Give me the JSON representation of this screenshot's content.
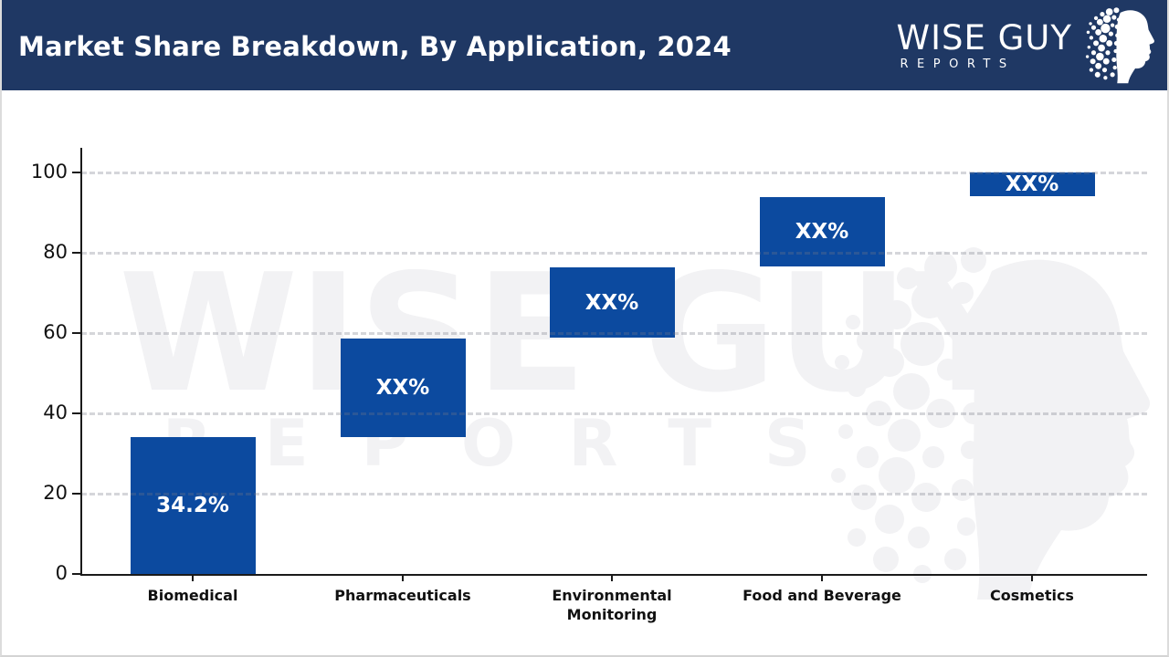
{
  "header": {
    "title": "Market Share Breakdown, By Application, 2024",
    "logo": {
      "line1": "WISE GUY",
      "line2": "REPORTS"
    }
  },
  "watermark": {
    "line1": "WISE GUY",
    "line2": "REPORTS"
  },
  "chart_data": {
    "type": "bar",
    "subtype": "waterfall",
    "title": "Market Share Breakdown, By Application, 2024",
    "categories": [
      "Biomedical",
      "Pharmaceuticals",
      "Environmental\nMonitoring",
      "Food and Beverage",
      "Cosmetics"
    ],
    "series": [
      {
        "name": "Market Share (%)",
        "segments": [
          {
            "category": "Biomedical",
            "start": 0,
            "end": 34.2,
            "label": "34.2%"
          },
          {
            "category": "Pharmaceuticals",
            "start": 34.2,
            "end": 58.6,
            "label": "XX%"
          },
          {
            "category": "Environmental\nMonitoring",
            "start": 58.8,
            "end": 76.4,
            "label": "XX%"
          },
          {
            "category": "Food and Beverage",
            "start": 76.6,
            "end": 93.9,
            "label": "XX%"
          },
          {
            "category": "Cosmetics",
            "start": 94.1,
            "end": 100,
            "label": "XX%"
          }
        ]
      }
    ],
    "xlabel": "",
    "ylabel": "",
    "yticks": [
      0,
      20,
      40,
      60,
      80,
      100
    ],
    "ylim": [
      0,
      106
    ],
    "grid": "horizontal-dashed",
    "legend": "none",
    "bar_color": "#0c4a9f",
    "bar_label_color": "#ffffff",
    "axis_color": "#1a1a1a",
    "tick_label_color": "#111111"
  },
  "colors": {
    "header_bg": "#1f3864",
    "header_text": "#ffffff",
    "watermark": "#f2f2f4",
    "frame_border": "#dcdcdc"
  }
}
